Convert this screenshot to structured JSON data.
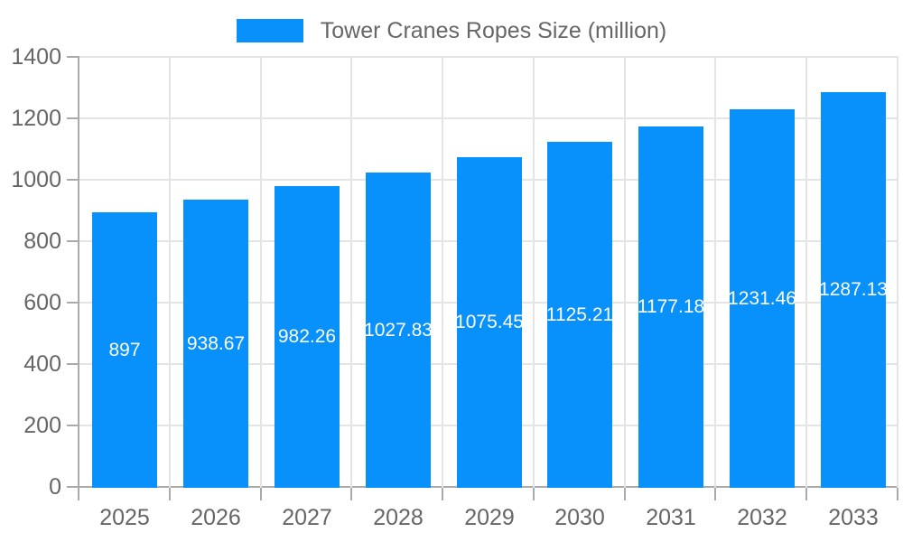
{
  "legend": {
    "label": "Tower Cranes Ropes Size (million)"
  },
  "colors": {
    "bar": "#0991fb",
    "grid": "#e4e4e4",
    "axis": "#aaaaaa",
    "text": "#666666",
    "value_label": "#ffffff",
    "background": "#ffffff"
  },
  "chart_data": {
    "type": "bar",
    "title": "Tower Cranes Ropes Size (million)",
    "categories": [
      "2025",
      "2026",
      "2027",
      "2028",
      "2029",
      "2030",
      "2031",
      "2032",
      "2033"
    ],
    "values": [
      897,
      938.67,
      982.26,
      1027.83,
      1075.45,
      1125.21,
      1177.18,
      1231.46,
      1287.13
    ],
    "value_labels": [
      "897",
      "938.67",
      "982.26",
      "1027.83",
      "1075.45",
      "1125.21",
      "1177.18",
      "1231.46",
      "1287.13"
    ],
    "xlabel": "",
    "ylabel": "",
    "ylim": [
      0,
      1400
    ],
    "ytick_interval": 200,
    "ytick_labels": [
      "0",
      "200",
      "400",
      "600",
      "800",
      "1000",
      "1200",
      "1400"
    ],
    "grid": true,
    "legend_position": "top-center",
    "value_label_position": "bar-center-clipped"
  }
}
